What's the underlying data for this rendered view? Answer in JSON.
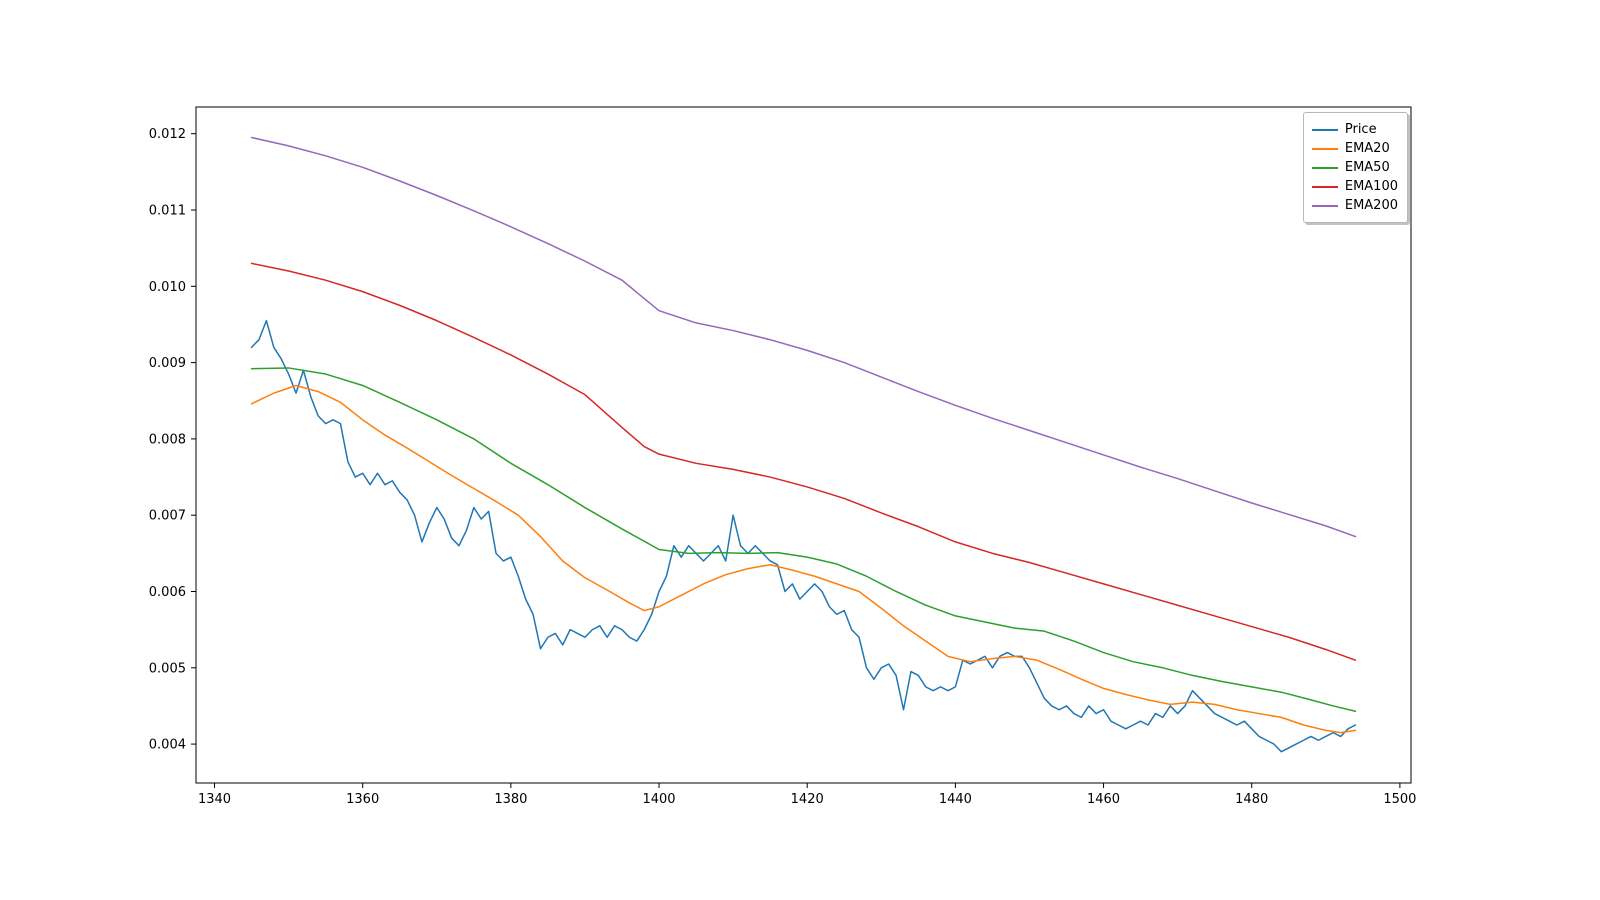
{
  "figure": {
    "background": "#ffffff",
    "spine_color": "#000000",
    "tick_label_color": "#000000"
  },
  "chart_data": {
    "type": "line",
    "title": "",
    "xlabel": "",
    "ylabel": "",
    "xlim": [
      1337.5,
      1501.5
    ],
    "ylim": [
      0.00349,
      0.01235
    ],
    "grid": false,
    "legend_position": "upper right",
    "x_ticks": [
      {
        "v": 1340,
        "label": "1340"
      },
      {
        "v": 1360,
        "label": "1360"
      },
      {
        "v": 1380,
        "label": "1380"
      },
      {
        "v": 1400,
        "label": "1400"
      },
      {
        "v": 1420,
        "label": "1420"
      },
      {
        "v": 1440,
        "label": "1440"
      },
      {
        "v": 1460,
        "label": "1460"
      },
      {
        "v": 1480,
        "label": "1480"
      },
      {
        "v": 1500,
        "label": "1500"
      }
    ],
    "y_ticks": [
      {
        "v": 0.004,
        "label": "0.004"
      },
      {
        "v": 0.005,
        "label": "0.005"
      },
      {
        "v": 0.006,
        "label": "0.006"
      },
      {
        "v": 0.007,
        "label": "0.007"
      },
      {
        "v": 0.008,
        "label": "0.008"
      },
      {
        "v": 0.009,
        "label": "0.009"
      },
      {
        "v": 0.01,
        "label": "0.010"
      },
      {
        "v": 0.011,
        "label": "0.011"
      },
      {
        "v": 0.012,
        "label": "0.012"
      }
    ],
    "series": [
      {
        "name": "Price",
        "color": "#1f77b4",
        "x_start": 1345,
        "x_step": 1,
        "y": [
          0.0092,
          0.0093,
          0.00955,
          0.0092,
          0.00905,
          0.00885,
          0.0086,
          0.0089,
          0.00855,
          0.0083,
          0.0082,
          0.00825,
          0.0082,
          0.0077,
          0.0075,
          0.00755,
          0.0074,
          0.00755,
          0.0074,
          0.00745,
          0.0073,
          0.0072,
          0.007,
          0.00665,
          0.0069,
          0.0071,
          0.00695,
          0.0067,
          0.0066,
          0.0068,
          0.0071,
          0.00695,
          0.00705,
          0.0065,
          0.0064,
          0.00645,
          0.0062,
          0.0059,
          0.0057,
          0.00525,
          0.0054,
          0.00545,
          0.0053,
          0.0055,
          0.00545,
          0.0054,
          0.0055,
          0.00555,
          0.0054,
          0.00555,
          0.0055,
          0.0054,
          0.00535,
          0.0055,
          0.0057,
          0.006,
          0.0062,
          0.0066,
          0.00645,
          0.0066,
          0.0065,
          0.0064,
          0.0065,
          0.0066,
          0.0064,
          0.007,
          0.0066,
          0.0065,
          0.0066,
          0.0065,
          0.0064,
          0.00635,
          0.006,
          0.0061,
          0.0059,
          0.006,
          0.0061,
          0.006,
          0.0058,
          0.0057,
          0.00575,
          0.0055,
          0.0054,
          0.005,
          0.00485,
          0.005,
          0.00505,
          0.0049,
          0.00445,
          0.00495,
          0.0049,
          0.00475,
          0.0047,
          0.00475,
          0.0047,
          0.00475,
          0.0051,
          0.00505,
          0.0051,
          0.00515,
          0.005,
          0.00515,
          0.0052,
          0.00515,
          0.00515,
          0.005,
          0.0048,
          0.0046,
          0.0045,
          0.00445,
          0.0045,
          0.0044,
          0.00435,
          0.0045,
          0.0044,
          0.00445,
          0.0043,
          0.00425,
          0.0042,
          0.00425,
          0.0043,
          0.00425,
          0.0044,
          0.00435,
          0.0045,
          0.0044,
          0.0045,
          0.0047,
          0.0046,
          0.0045,
          0.0044,
          0.00435,
          0.0043,
          0.00425,
          0.0043,
          0.0042,
          0.0041,
          0.00405,
          0.004,
          0.0039,
          0.00395,
          0.004,
          0.00405,
          0.0041,
          0.00405,
          0.0041,
          0.00415,
          0.0041,
          0.0042,
          0.00425
        ]
      },
      {
        "name": "EMA20",
        "color": "#ff7f0e",
        "x": [
          1345,
          1348,
          1351,
          1354,
          1357,
          1360,
          1363,
          1366,
          1369,
          1372,
          1375,
          1378,
          1381,
          1384,
          1387,
          1390,
          1393,
          1396,
          1398,
          1400,
          1403,
          1406,
          1409,
          1412,
          1415,
          1418,
          1421,
          1424,
          1427,
          1430,
          1433,
          1436,
          1439,
          1442,
          1445,
          1448,
          1451,
          1454,
          1457,
          1460,
          1463,
          1466,
          1469,
          1472,
          1475,
          1478,
          1481,
          1484,
          1487,
          1490,
          1492,
          1494
        ],
        "y": [
          0.00846,
          0.0086,
          0.0087,
          0.00862,
          0.00848,
          0.00825,
          0.00805,
          0.00788,
          0.0077,
          0.00752,
          0.00735,
          0.00718,
          0.007,
          0.00672,
          0.0064,
          0.00618,
          0.00602,
          0.00585,
          0.00575,
          0.0058,
          0.00595,
          0.0061,
          0.00622,
          0.0063,
          0.00635,
          0.00628,
          0.0062,
          0.0061,
          0.006,
          0.00578,
          0.00555,
          0.00535,
          0.00515,
          0.00508,
          0.00512,
          0.00515,
          0.0051,
          0.00498,
          0.00485,
          0.00473,
          0.00465,
          0.00458,
          0.00452,
          0.00455,
          0.00452,
          0.00445,
          0.0044,
          0.00435,
          0.00425,
          0.00418,
          0.00415,
          0.00418
        ]
      },
      {
        "name": "EMA50",
        "color": "#2ca02c",
        "x": [
          1345,
          1350,
          1355,
          1360,
          1365,
          1370,
          1375,
          1380,
          1385,
          1390,
          1395,
          1400,
          1404,
          1408,
          1412,
          1416,
          1420,
          1424,
          1428,
          1432,
          1436,
          1440,
          1444,
          1448,
          1452,
          1456,
          1460,
          1464,
          1468,
          1472,
          1476,
          1480,
          1484,
          1488,
          1491,
          1494
        ],
        "y": [
          0.00892,
          0.00893,
          0.00885,
          0.0087,
          0.00848,
          0.00825,
          0.008,
          0.00768,
          0.0074,
          0.0071,
          0.00682,
          0.00655,
          0.0065,
          0.00651,
          0.0065,
          0.00651,
          0.00645,
          0.00636,
          0.0062,
          0.006,
          0.00582,
          0.00568,
          0.0056,
          0.00552,
          0.00548,
          0.00535,
          0.0052,
          0.00508,
          0.005,
          0.0049,
          0.00482,
          0.00475,
          0.00468,
          0.00458,
          0.0045,
          0.00443
        ]
      },
      {
        "name": "EMA100",
        "color": "#d62728",
        "x": [
          1345,
          1350,
          1355,
          1360,
          1365,
          1370,
          1375,
          1380,
          1385,
          1390,
          1395,
          1398,
          1400,
          1405,
          1410,
          1415,
          1420,
          1425,
          1430,
          1435,
          1440,
          1445,
          1450,
          1455,
          1460,
          1465,
          1470,
          1475,
          1480,
          1485,
          1490,
          1494
        ],
        "y": [
          0.0103,
          0.0102,
          0.01008,
          0.00993,
          0.00975,
          0.00955,
          0.00933,
          0.0091,
          0.00885,
          0.00858,
          0.00815,
          0.0079,
          0.0078,
          0.00768,
          0.0076,
          0.0075,
          0.00737,
          0.00722,
          0.00703,
          0.00685,
          0.00665,
          0.0065,
          0.00638,
          0.00624,
          0.0061,
          0.00596,
          0.00582,
          0.00568,
          0.00554,
          0.0054,
          0.00524,
          0.0051
        ]
      },
      {
        "name": "EMA200",
        "color": "#9467bd",
        "x": [
          1345,
          1350,
          1355,
          1360,
          1365,
          1370,
          1375,
          1380,
          1385,
          1390,
          1395,
          1400,
          1405,
          1410,
          1415,
          1420,
          1425,
          1430,
          1435,
          1440,
          1445,
          1450,
          1455,
          1460,
          1465,
          1470,
          1475,
          1480,
          1485,
          1490,
          1494
        ],
        "y": [
          0.01195,
          0.01184,
          0.01171,
          0.01156,
          0.01138,
          0.01119,
          0.01099,
          0.01078,
          0.01056,
          0.01033,
          0.01008,
          0.00968,
          0.00952,
          0.00942,
          0.0093,
          0.00916,
          0.009,
          0.00881,
          0.00862,
          0.00844,
          0.00827,
          0.00811,
          0.00795,
          0.00779,
          0.00763,
          0.00748,
          0.00732,
          0.00716,
          0.00701,
          0.00686,
          0.00672
        ]
      }
    ]
  },
  "legend": {
    "entries": [
      "Price",
      "EMA20",
      "EMA50",
      "EMA100",
      "EMA200"
    ]
  }
}
